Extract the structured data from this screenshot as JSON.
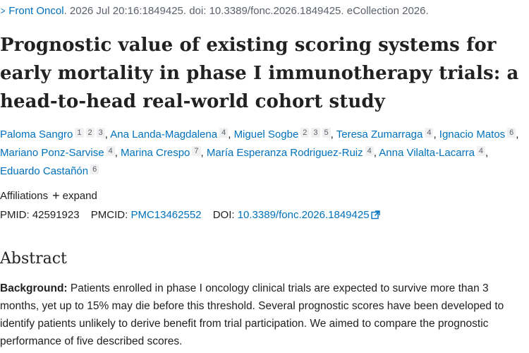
{
  "citation": {
    "journal": "Front Oncol",
    "rest": ". 2026 Jul 20:16:1849425. doi: 10.3389/fonc.2026.1849425. eCollection 2026."
  },
  "title": "Prognostic value of existing scoring systems for early mortality in phase I immunotherapy trials: a head-to-head real-world cohort study",
  "authors": [
    {
      "name": "Paloma Sangro",
      "affils": [
        "1",
        "2",
        "3"
      ]
    },
    {
      "name": "Ana Landa-Magdalena",
      "affils": [
        "4"
      ]
    },
    {
      "name": "Miguel Sogbe",
      "affils": [
        "2",
        "3",
        "5"
      ]
    },
    {
      "name": "Teresa Zumarraga",
      "affils": [
        "4"
      ]
    },
    {
      "name": "Ignacio Matos",
      "affils": [
        "6"
      ]
    },
    {
      "name": "Mariano Ponz-Sarvise",
      "affils": [
        "4"
      ]
    },
    {
      "name": "Marina Crespo",
      "affils": [
        "7"
      ]
    },
    {
      "name": "María Esperanza Rodriguez-Ruiz",
      "affils": [
        "4"
      ]
    },
    {
      "name": "Anna Vilalta-Lacarra",
      "affils": [
        "4"
      ]
    },
    {
      "name": "Eduardo Castañón",
      "affils": [
        "6"
      ]
    }
  ],
  "affiliations": {
    "label": "Affiliations",
    "toggle_symbol": "+",
    "toggle_label": "expand"
  },
  "identifiers": {
    "pmid_label": "PMID:",
    "pmid": "42591923",
    "pmcid_label": "PMCID:",
    "pmcid": "PMC13462552",
    "doi_label": "DOI:",
    "doi": "10.3389/fonc.2026.1849425"
  },
  "abstract": {
    "heading": "Abstract",
    "background_label": "Background:",
    "background_text": " Patients enrolled in phase I oncology clinical trials are expected to survive more than 3 months, yet up to 15% may die before this threshold. Several prognostic scores have been developed to identify patients unlikely to derive benefit from trial participation. We aimed to compare the prognostic performance of five described scores."
  },
  "colors": {
    "link": "#0071bc",
    "text": "#212121",
    "muted": "#5b616b"
  },
  "icons": {
    "citation_chevron": "chevron-right-icon",
    "doi_external": "external-link-icon"
  }
}
